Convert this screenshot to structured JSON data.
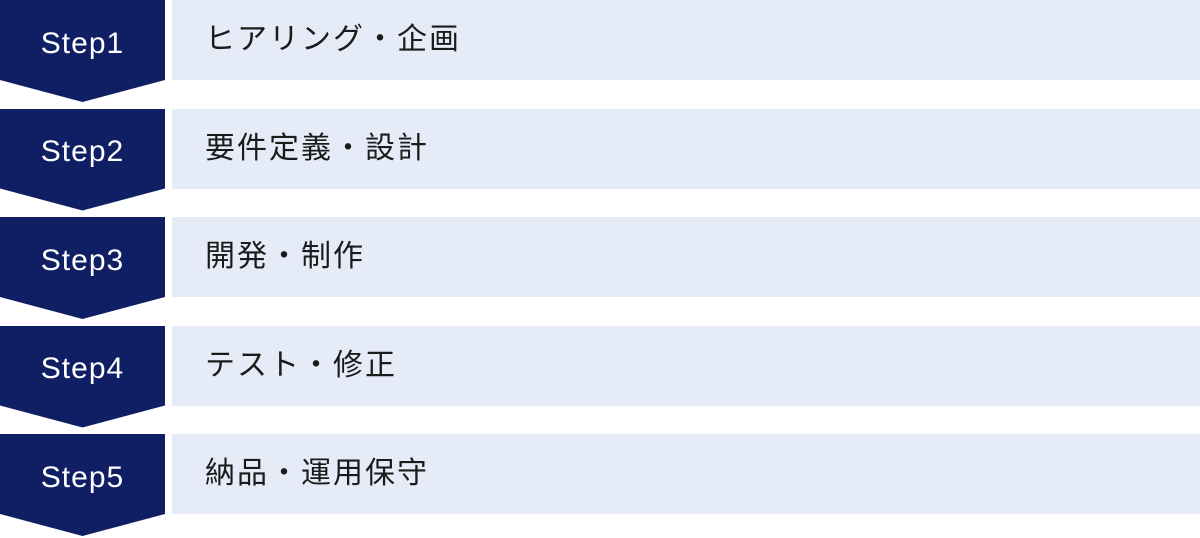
{
  "steps": [
    {
      "label": "Step1",
      "title": "ヒアリング・企画"
    },
    {
      "label": "Step2",
      "title": "要件定義・設計"
    },
    {
      "label": "Step3",
      "title": "開発・制作"
    },
    {
      "label": "Step4",
      "title": "テスト・修正"
    },
    {
      "label": "Step5",
      "title": "納品・運用保守"
    }
  ],
  "colors": {
    "chevron": "#101f63",
    "bar": "#e6ebf8",
    "stepText": "#ffffff",
    "titleText": "#1b1b1b",
    "background": "#ffffff"
  }
}
